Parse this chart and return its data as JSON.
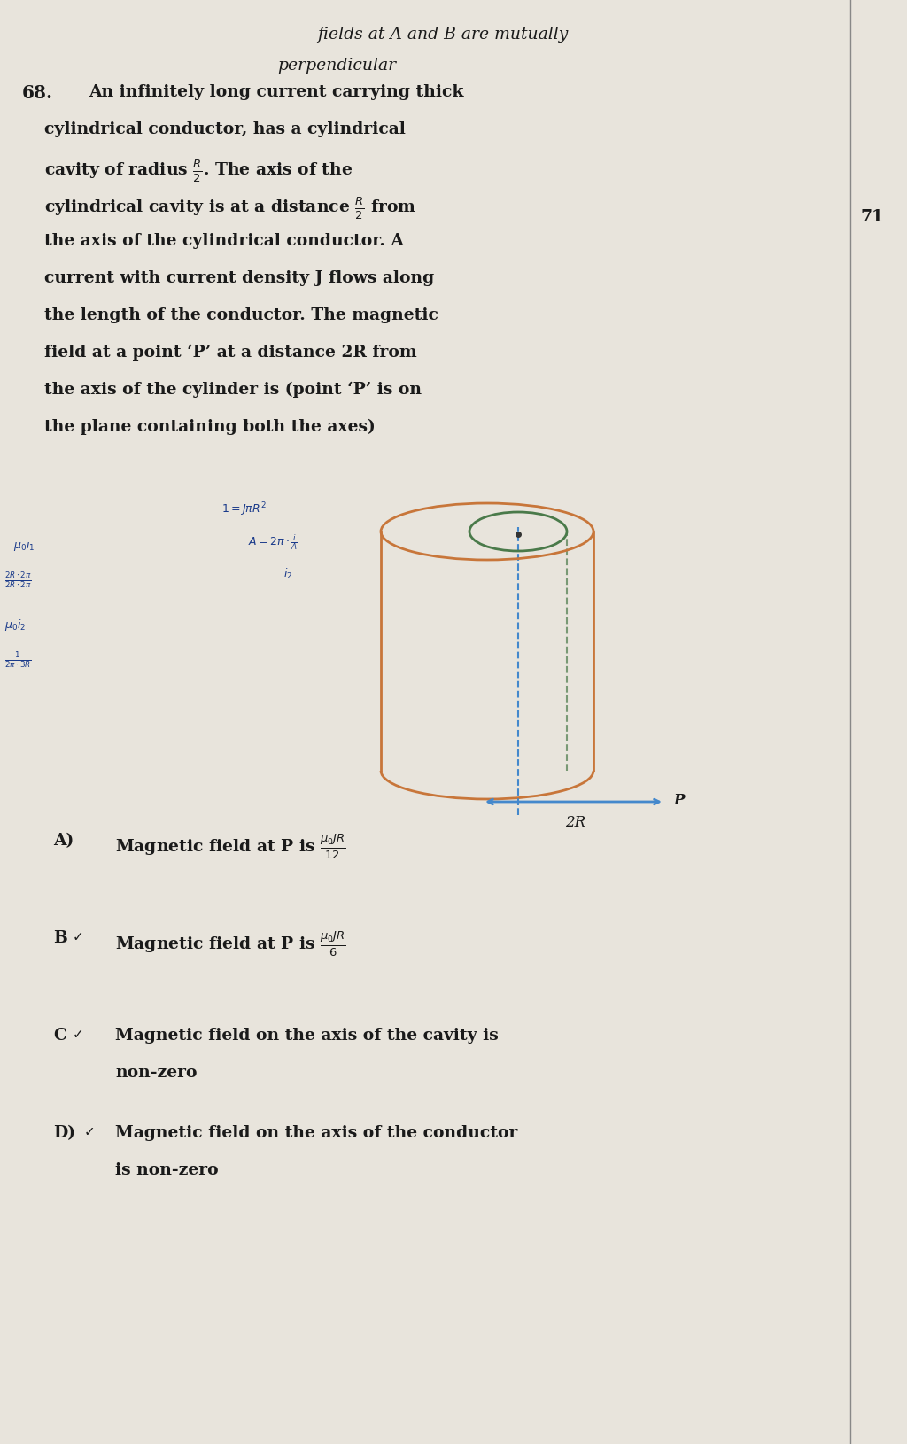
{
  "background_color": "#e8e4dc",
  "page_width": 10.24,
  "page_height": 16.3,
  "top_text": "fields at A and B are mutually\nperpendicular",
  "question_number": "68.",
  "question_text_lines": [
    "An infinitely long current carrying thick",
    "cylindrical conductor, has a cylindrical",
    "cavity of radius $\\frac{R}{2}$. The axis of the",
    "cylindrical cavity is at a distance $\\frac{R}{2}$ from",
    "the axis of the cylindrical conductor. A",
    "current with current density J flows along",
    "the length of the conductor. The magnetic",
    "field at a point ‘P’ at a distance 2R from",
    "the axis of the cylinder is (point ‘P’ is on",
    "the plane containing both the axes)"
  ],
  "page_number": "71",
  "answers": [
    {
      "label": "A)",
      "text_before": "Magnetic field at P is ",
      "formula": "$\\frac{\\mu_0 JR}{12}$"
    },
    {
      "label": "B✓",
      "text_before": "Magnetic field at P is ",
      "formula": "$\\frac{\\mu_0 JR}{6}$"
    },
    {
      "label": "C✓",
      "text_before": "Magnetic field on the axis of the cavity is non-zero"
    },
    {
      "label": "D)✓",
      "text_before": "Magnetic field on the axis of the conductor is non-zero"
    }
  ],
  "diagram": {
    "cylinder_color": "#c8763a",
    "cavity_color": "#4a7a4a",
    "axis_color": "#4488cc",
    "axis_dashed_color": "#4488cc",
    "arrow_color": "#4488cc",
    "label_2R": "2R",
    "label_P": "P"
  },
  "handwriting_color": "#1a3a8a",
  "text_color": "#1a1a1a"
}
